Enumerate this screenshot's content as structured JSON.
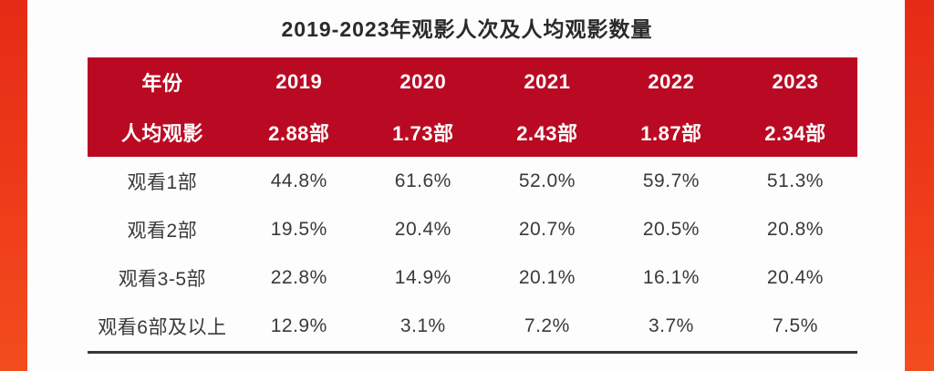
{
  "page": {
    "title": "2019-2023年观影人次及人均观影数量"
  },
  "colors": {
    "header_red": "#ba0a23",
    "accent_orange": "#ee3c1a",
    "body_text": "#3a3a3a",
    "header_text": "#ffffff",
    "bottom_border": "#383838"
  },
  "chart_data": {
    "type": "table",
    "title": "2019-2023年观影人次及人均观影数量",
    "columns": [
      "年份",
      "2019",
      "2020",
      "2021",
      "2022",
      "2023"
    ],
    "header_rows": [
      {
        "label": "年份",
        "values": [
          "2019",
          "2020",
          "2021",
          "2022",
          "2023"
        ]
      },
      {
        "label": "人均观影",
        "values": [
          "2.88部",
          "1.73部",
          "2.43部",
          "1.87部",
          "2.34部"
        ]
      }
    ],
    "rows": [
      {
        "label": "观看1部",
        "values": [
          "44.8%",
          "61.6%",
          "52.0%",
          "59.7%",
          "51.3%"
        ]
      },
      {
        "label": "观看2部",
        "values": [
          "19.5%",
          "20.4%",
          "20.7%",
          "20.5%",
          "20.8%"
        ]
      },
      {
        "label": "观看3-5部",
        "values": [
          "22.8%",
          "14.9%",
          "20.1%",
          "16.1%",
          "20.4%"
        ]
      },
      {
        "label": "观看6部及以上",
        "values": [
          "12.9%",
          "3.1%",
          "7.2%",
          "3.7%",
          "7.5%"
        ]
      }
    ],
    "layout_hints": {
      "header_background": "#ba0a23",
      "grid": false,
      "bottom_rule": true
    }
  }
}
